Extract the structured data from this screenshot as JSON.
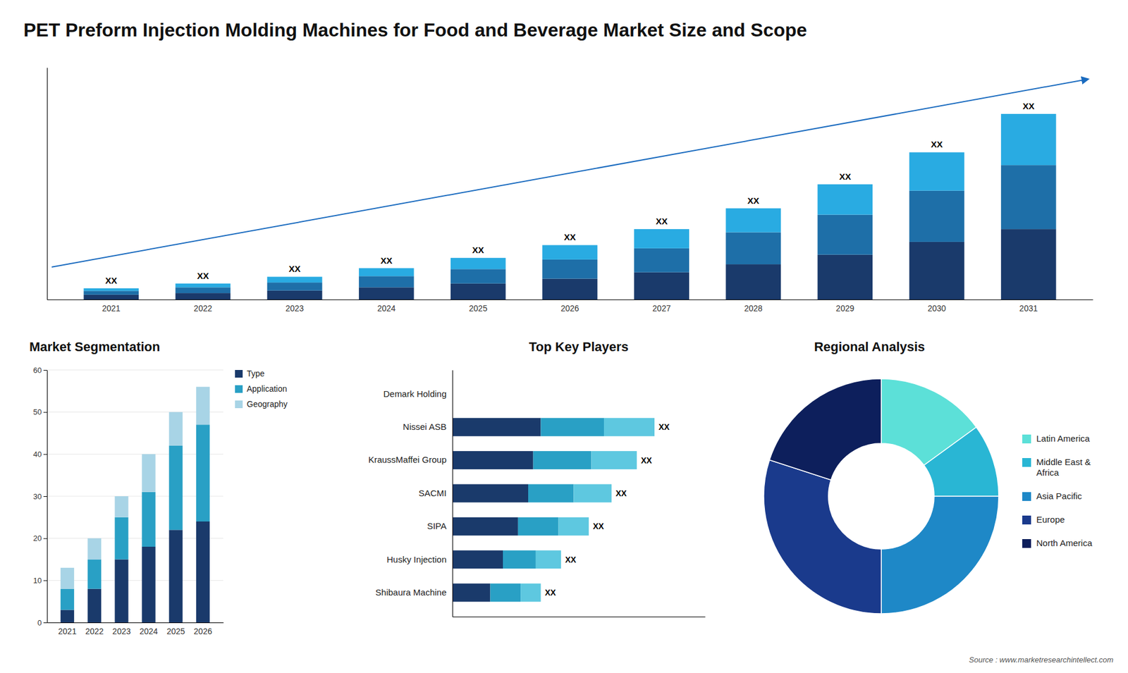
{
  "chart_data": [
    {
      "type": "bar",
      "stacked": true,
      "title": "PET Preform Injection Molding Machines for Food and Beverage Market Size and Scope",
      "categories": [
        "2021",
        "2022",
        "2023",
        "2024",
        "2025",
        "2026",
        "2027",
        "2028",
        "2029",
        "2030",
        "2031"
      ],
      "series": [
        {
          "color": "#1a3a6b",
          "values": [
            1.5,
            2.0,
            2.8,
            3.8,
            5.0,
            6.5,
            8.5,
            11.0,
            14.0,
            18.0,
            22.0
          ]
        },
        {
          "color": "#1e6fa8",
          "values": [
            1.2,
            1.8,
            2.5,
            3.5,
            4.5,
            6.0,
            7.5,
            10.0,
            12.5,
            16.0,
            20.0
          ]
        },
        {
          "color": "#29abe2",
          "values": [
            0.8,
            1.2,
            1.8,
            2.5,
            3.5,
            4.5,
            6.0,
            7.5,
            9.5,
            12.0,
            16.0
          ]
        }
      ],
      "annotations": [
        "XX",
        "XX",
        "XX",
        "XX",
        "XX",
        "XX",
        "XX",
        "XX",
        "XX",
        "XX",
        "XX"
      ],
      "ylim": [
        0,
        72.5
      ],
      "tick_labels": "x",
      "grid": false
    },
    {
      "type": "bar",
      "stacked": true,
      "title": "Market Segmentation",
      "categories": [
        "2021",
        "2022",
        "2023",
        "2024",
        "2025",
        "2026"
      ],
      "series": [
        {
          "name": "Type",
          "color": "#1a3a6b",
          "values": [
            3,
            8,
            15,
            18,
            22,
            24
          ]
        },
        {
          "name": "Application",
          "color": "#29a0c5",
          "values": [
            5,
            7,
            10,
            13,
            20,
            23
          ]
        },
        {
          "name": "Geography",
          "color": "#a8d4e6",
          "values": [
            5,
            5,
            5,
            9,
            8,
            9
          ]
        }
      ],
      "ylim": [
        0,
        60
      ],
      "yticks": [
        0,
        10,
        20,
        30,
        40,
        50,
        60
      ],
      "grid": true,
      "legend": "right"
    },
    {
      "type": "bar",
      "stacked": true,
      "orientation": "horizontal",
      "title": "Top Key Players",
      "categories": [
        "Demark Holding",
        "Nissei ASB",
        "KraussMaffei Group",
        "SACMI",
        "SIPA",
        "Husky Injection",
        "Shibaura Machine"
      ],
      "series": [
        {
          "color": "#1a3a6b",
          "values": [
            0,
            3.5,
            3.2,
            3.0,
            2.6,
            2.0,
            1.5
          ]
        },
        {
          "color": "#29a0c5",
          "values": [
            0,
            2.5,
            2.3,
            1.8,
            1.6,
            1.3,
            1.2
          ]
        },
        {
          "color": "#5ec8e0",
          "values": [
            0,
            2.0,
            1.8,
            1.5,
            1.2,
            1.0,
            0.8
          ]
        }
      ],
      "annotations": [
        null,
        "XX",
        "XX",
        "XX",
        "XX",
        "XX",
        "XX"
      ],
      "xlim": [
        0,
        10
      ],
      "tick_labels": "y",
      "grid": false
    },
    {
      "type": "pie",
      "title": "Regional Analysis",
      "categories": [
        "Latin America",
        "Middle East &\nAfrica",
        "Asia Pacific",
        "Europe",
        "North America"
      ],
      "values": [
        15,
        10,
        25,
        30,
        20
      ],
      "colors": [
        "#5ce0d8",
        "#29b6d4",
        "#1e88c7",
        "#1a3a8c",
        "#0d1f5c"
      ],
      "legend": "right",
      "annotations": [
        "Source : www.marketresearchintellect.com"
      ]
    }
  ]
}
